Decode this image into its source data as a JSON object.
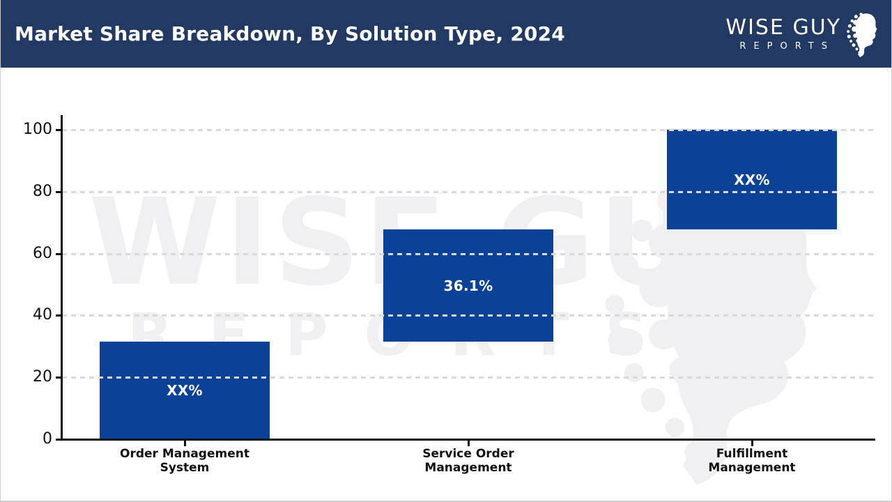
{
  "header": {
    "title": "Market Share Breakdown, By Solution Type, 2024",
    "logo": {
      "name": "WISE GUY",
      "sub": "REPORTS"
    }
  },
  "watermark": {
    "line1": "WISE GUY",
    "line2": "REPORTS"
  },
  "colors": {
    "header_bg": "#223A63",
    "bar_blue": "#0A4297",
    "grid": "#D9D9D9",
    "axis": "#111111",
    "bar_label": "#FFFFFF",
    "watermark": "#F0F0F2"
  },
  "chart_data": {
    "type": "bar",
    "subtype": "waterfall",
    "title": "Market Share Breakdown, By Solution Type, 2024",
    "categories": [
      "Order Management\nSystem",
      "Service Order\nManagement",
      "Fulfillment\nManagement"
    ],
    "values": [
      31.6,
      36.1,
      32.3
    ],
    "segments": [
      {
        "category": "Order Management System",
        "from": 0,
        "to": 31.6,
        "label": "XX%"
      },
      {
        "category": "Service Order Management",
        "from": 31.6,
        "to": 67.7,
        "label": "36.1%"
      },
      {
        "category": "Fulfillment Management",
        "from": 67.7,
        "to": 100,
        "label": "XX%"
      }
    ],
    "yticks": [
      0,
      20,
      40,
      60,
      80,
      100
    ],
    "ylim": [
      0,
      100
    ],
    "xlabel": "",
    "ylabel": "",
    "grid": "dashed-horizontal",
    "legend": "none"
  }
}
